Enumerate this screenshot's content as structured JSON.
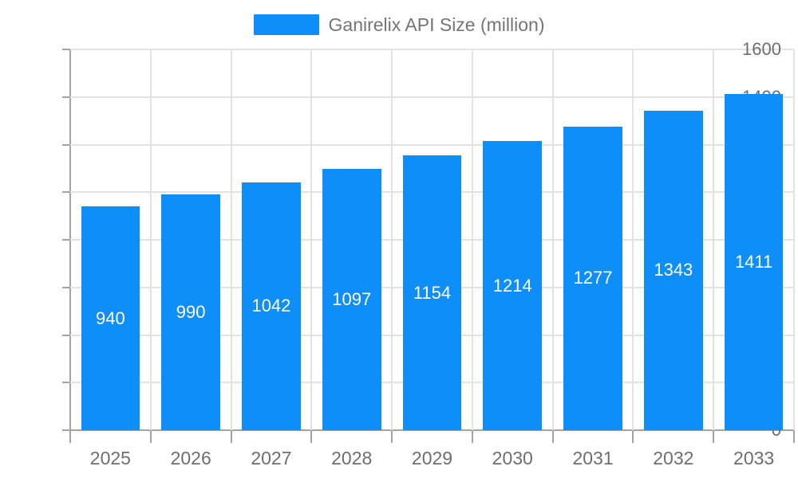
{
  "legend": {
    "label": "Ganirelix API Size (million)"
  },
  "colors": {
    "bar": "#0d8ef8",
    "grid": "#e3e3e3",
    "axis": "#a3a3a3",
    "tick": "#a3a3a3",
    "axis_text": "#6e6e6e",
    "legend_text": "#757575",
    "bar_label": "#ffffff",
    "background": "#ffffff"
  },
  "chart_data": {
    "type": "bar",
    "title": "Ganirelix API Size (million)",
    "categories": [
      "2025",
      "2026",
      "2027",
      "2028",
      "2029",
      "2030",
      "2031",
      "2032",
      "2033"
    ],
    "values": [
      940,
      990,
      1042,
      1097,
      1154,
      1214,
      1277,
      1343,
      1411
    ],
    "series": [
      {
        "name": "Ganirelix API Size (million)",
        "values": [
          940,
          990,
          1042,
          1097,
          1154,
          1214,
          1277,
          1343,
          1411
        ]
      }
    ],
    "xlabel": "",
    "ylabel": "",
    "ylim": [
      0,
      1600
    ],
    "yticks": [
      0,
      200,
      400,
      600,
      800,
      1000,
      1200,
      1400,
      1600
    ],
    "grid": true,
    "legend_position": "top-center",
    "value_labels": "inside-center",
    "bar_width_fraction": 0.73
  }
}
